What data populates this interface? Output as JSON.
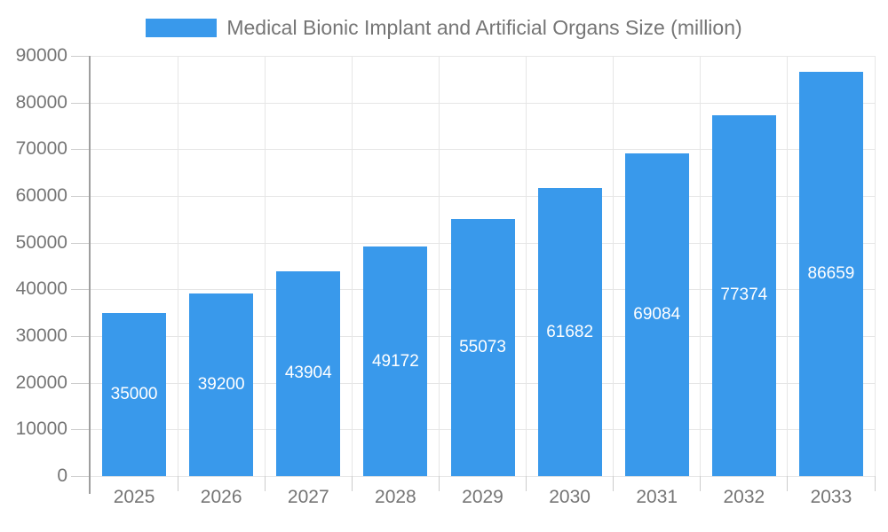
{
  "chart_data": {
    "type": "bar",
    "title": "Medical Bionic Implant and Artificial Organs Size (million)",
    "legend_label": "Medical Bionic Implant and Artificial Organs Size (million)",
    "legend_position": "top",
    "categories": [
      "2025",
      "2026",
      "2027",
      "2028",
      "2029",
      "2030",
      "2031",
      "2032",
      "2033"
    ],
    "values": [
      35000,
      39200,
      43904,
      49172,
      55073,
      61682,
      69084,
      77374,
      86659
    ],
    "bar_labels": [
      "35000",
      "39200",
      "43904",
      "49172",
      "55073",
      "61682",
      "69084",
      "77374",
      "86659"
    ],
    "xlabel": "",
    "ylabel": "",
    "ylim": [
      0,
      90000
    ],
    "ytick_step": 10000,
    "ytick_labels": [
      "0",
      "10000",
      "20000",
      "30000",
      "40000",
      "50000",
      "60000",
      "70000",
      "80000",
      "90000"
    ],
    "grid": true
  },
  "colors": {
    "bar": "#3999EB",
    "grid": "#E6E6E6",
    "axis": "#9E9E9E",
    "tick": "#CCCCCC",
    "text": "#757575",
    "bar_label": "#FFFFFF",
    "background": "#FFFFFF"
  }
}
